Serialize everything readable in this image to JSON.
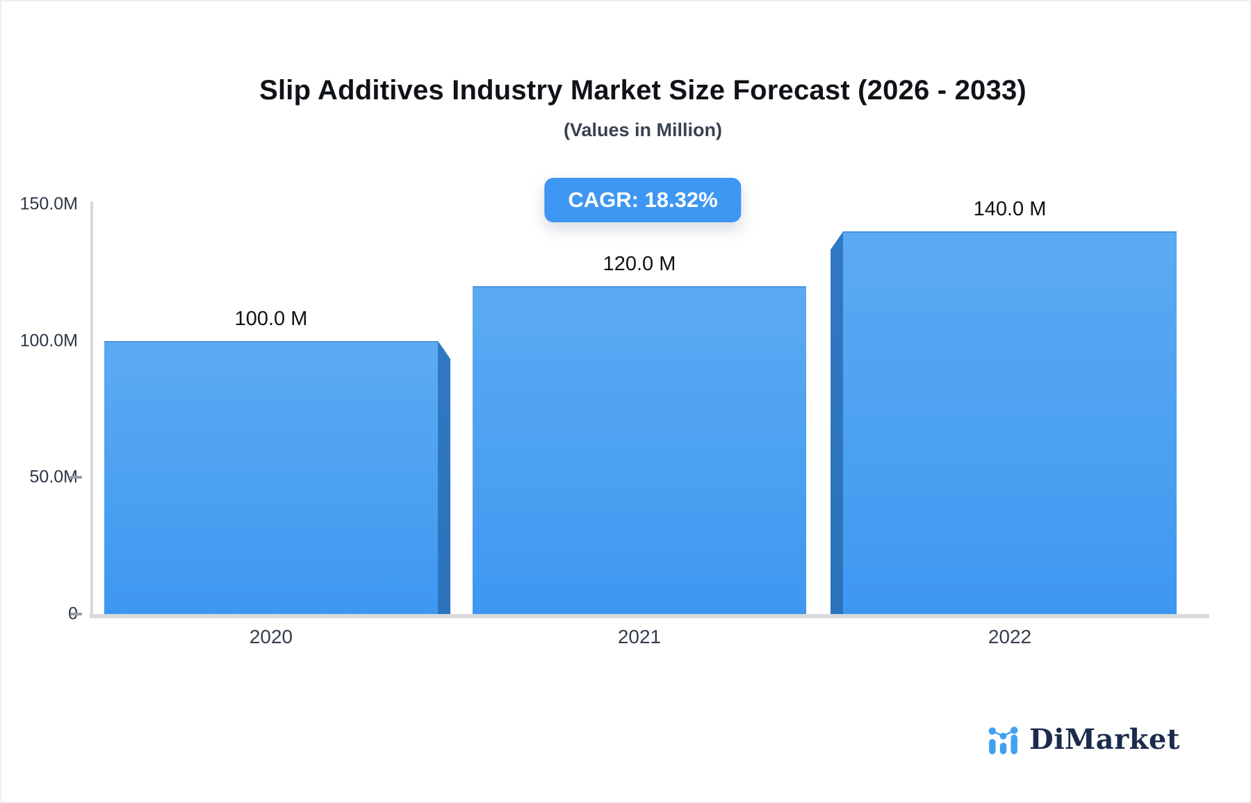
{
  "header": {
    "title": "Slip Additives Industry Market Size Forecast (2026 - 2033)",
    "subtitle": "(Values in Million)",
    "cagr_badge": "CAGR: 18.32%"
  },
  "chart_data": {
    "type": "bar",
    "title": "Slip Additives Industry Market Size Forecast (2026 - 2033)",
    "subtitle": "(Values in Million)",
    "annotation": "CAGR: 18.32%",
    "categories": [
      "2020",
      "2021",
      "2022"
    ],
    "values": [
      100.0,
      120.0,
      140.0
    ],
    "value_labels": [
      "100.0 M",
      "120.0 M",
      "140.0 M"
    ],
    "unit": "Million",
    "xlabel": "",
    "ylabel": "",
    "ylim": [
      0,
      150
    ],
    "y_ticks": [
      {
        "value": 0,
        "label": "0",
        "dash": true
      },
      {
        "value": 50,
        "label": "50.0M",
        "dash": true
      },
      {
        "value": 100,
        "label": "100.0M",
        "dash": false
      },
      {
        "value": 150,
        "label": "150.0M",
        "dash": false
      }
    ],
    "grid": false,
    "legend": false,
    "bar_3d_sides": [
      "right",
      "none",
      "left"
    ]
  },
  "branding": {
    "logo_text": "DiMarket",
    "logo_icon": "mini-bar-chart-icon"
  },
  "colors": {
    "bar_top": "#5caaf2",
    "bar_bottom": "#3e97f1",
    "bar_side_3d": "#2d73bb",
    "badge_bg": "#3e97f2",
    "badge_text": "#ffffff",
    "axis_line": "#d7d7db",
    "tick_text": "#2d3745",
    "title_text": "#0f1217",
    "logo_navy": "#1c2b4c",
    "logo_blue": "#42a0f0"
  }
}
